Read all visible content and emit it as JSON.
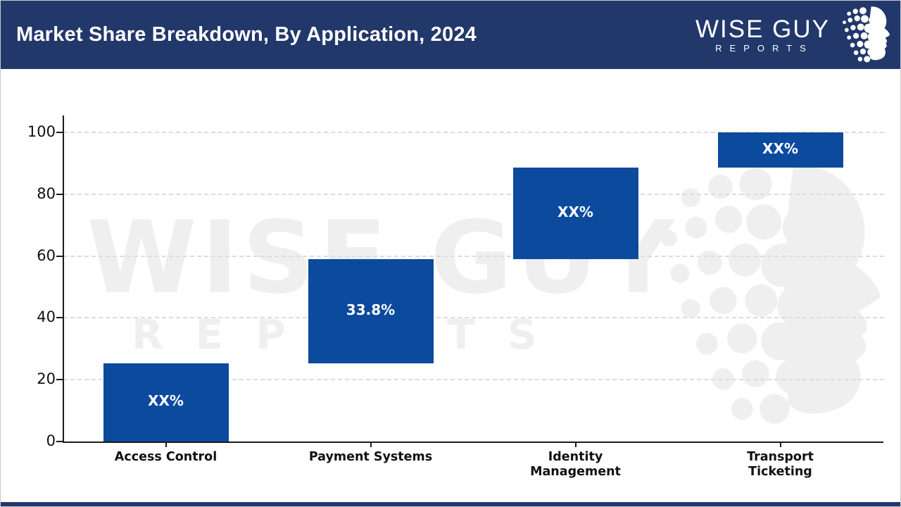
{
  "header": {
    "title": "Market Share Breakdown, By Application, 2024",
    "logo": {
      "line1": "WISE GUY",
      "line2": "REPORTS"
    }
  },
  "watermark": {
    "line1": "WISE GUY",
    "line2": "REPORTS"
  },
  "colors": {
    "header_bg": "#22386B",
    "bar": "#0C4A9E",
    "grid": "#DCDCDC",
    "axis": "#1A1A1A",
    "bar_label_text": "#FFFFFF",
    "watermark": "#EFEFEF"
  },
  "chart_data": {
    "type": "bar",
    "subtype": "waterfall",
    "title": "Market Share Breakdown, By Application, 2024",
    "xlabel": "",
    "ylabel": "",
    "ylim": [
      0,
      105
    ],
    "yticks": [
      0,
      20,
      40,
      60,
      80,
      100
    ],
    "grid": "horizontal-dashed",
    "legend": "none",
    "categories": [
      "Access Control",
      "Payment Systems",
      "Identity Management",
      "Transport Ticketing"
    ],
    "segments": [
      {
        "category": "Access Control",
        "lines": [
          "Access Control"
        ],
        "start": 0,
        "end": 25.3,
        "value_label": "XX%"
      },
      {
        "category": "Payment Systems",
        "lines": [
          "Payment Systems"
        ],
        "start": 25.3,
        "end": 59.1,
        "value": 33.8,
        "value_label": "33.8%"
      },
      {
        "category": "Identity Management",
        "lines": [
          "Identity",
          "Management"
        ],
        "start": 59.1,
        "end": 88.7,
        "value_label": "XX%"
      },
      {
        "category": "Transport Ticketing",
        "lines": [
          "Transport",
          "Ticketing"
        ],
        "start": 88.7,
        "end": 100,
        "value_label": "XX%"
      }
    ]
  }
}
